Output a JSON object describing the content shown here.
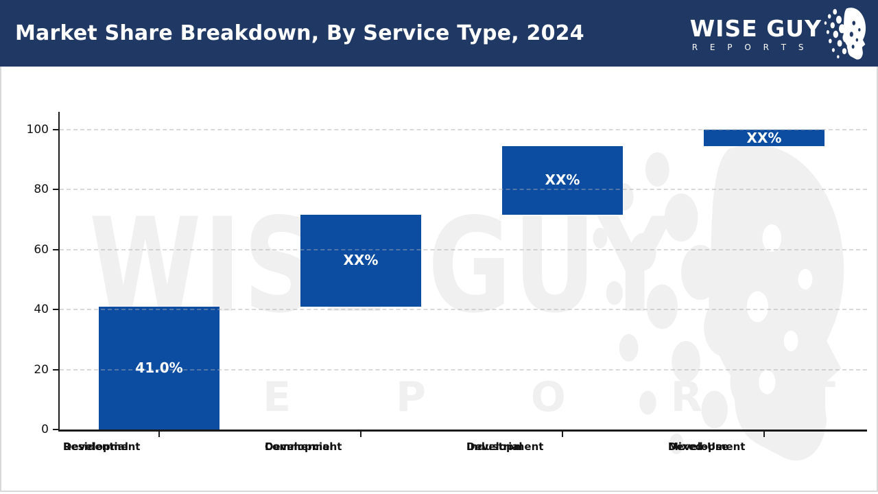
{
  "header": {
    "title": "Market Share Breakdown, By Service Type, 2024",
    "logo": {
      "name": "WISE GUY",
      "sub": "R E P O R T S"
    }
  },
  "watermark": {
    "line1": "WISE GUY",
    "line2": "R E P O R T S"
  },
  "colors": {
    "header_navy": "#203864",
    "bar_blue": "#0c4da2",
    "axis_black": "#1a1a1a",
    "grid_gray": "#dcdcdc",
    "watermark_gray": "#f0f0f0",
    "frame_gray": "#d8d8d8",
    "value_label_white": "#ffffff",
    "text_black": "#111111"
  },
  "chart_data": {
    "type": "bar",
    "subtype": "waterfall-segments",
    "title": "Market Share Breakdown, By Service Type, 2024",
    "categories": [
      "Residential Development",
      "Commercial Development",
      "Industrial Development",
      "Mixed-Use Development"
    ],
    "bars": [
      {
        "category": "Residential Development",
        "start": 0,
        "end": 41.0,
        "label": "41.0%"
      },
      {
        "category": "Commercial Development",
        "start": 41.0,
        "end": 71.5,
        "label": "XX%"
      },
      {
        "category": "Industrial Development",
        "start": 71.5,
        "end": 94.3,
        "label": "XX%"
      },
      {
        "category": "Mixed-Use Development",
        "start": 94.3,
        "end": 100.0,
        "label": "XX%"
      }
    ],
    "values_shown": [
      "41.0%",
      "XX%",
      "XX%",
      "XX%"
    ],
    "yticks": [
      0,
      20,
      40,
      60,
      80,
      100
    ],
    "ylim": [
      0,
      106
    ],
    "xlabel": "",
    "ylabel": "",
    "grid": "horizontal-dashed",
    "legend": "none"
  }
}
